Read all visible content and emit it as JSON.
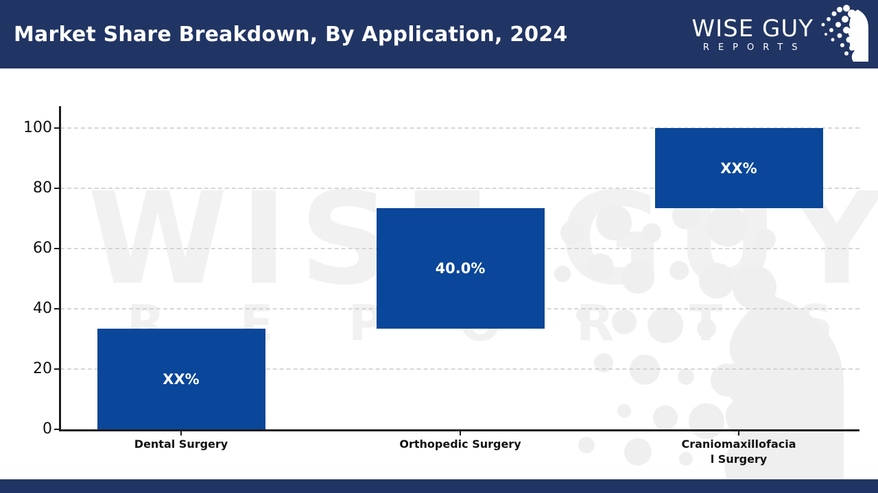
{
  "header": {
    "title": "Market Share Breakdown, By Application, 2024",
    "logo": {
      "line1": "WISE GUY",
      "line2": "REPORTS"
    }
  },
  "watermark": {
    "line1": "WISE GUY",
    "line2": "R E P O R T S"
  },
  "icons": {
    "logo_face": "dotted-face-profile",
    "watermark_face": "dotted-face-profile"
  },
  "colors": {
    "header_bg": "#213564",
    "footer_bg": "#213564",
    "bar_fill": "#0a4699",
    "bar_label": "#ffffff",
    "gridline": "#c9c9c9",
    "axis": "#1a1a1a",
    "watermark": "#f1f1f1"
  },
  "chart_data": {
    "type": "bar",
    "subtype": "waterfall",
    "title": "Market Share Breakdown, By Application, 2024",
    "categories": [
      "Dental Surgery",
      "Orthopedic Surgery",
      "Craniomaxillofacial Surgery"
    ],
    "x_tick_labels": [
      "Dental Surgery",
      "Orthopedic Surgery",
      "Craniomaxillofacia\nl Surgery"
    ],
    "series": [
      {
        "name": "Market Share (%)",
        "segments": [
          {
            "category": "Dental Surgery",
            "start": 0,
            "end": 33.3,
            "label": "XX%"
          },
          {
            "category": "Orthopedic Surgery",
            "start": 33.3,
            "end": 73.3,
            "label": "40.0%"
          },
          {
            "category": "Craniomaxillofacial Surgery",
            "start": 73.3,
            "end": 100,
            "label": "XX%"
          }
        ]
      }
    ],
    "ylim": [
      0,
      100
    ],
    "yticks": [
      0,
      20,
      40,
      60,
      80,
      100
    ],
    "xlabel": "",
    "ylabel": "",
    "grid": "horizontal-dashed",
    "legend": "none"
  }
}
